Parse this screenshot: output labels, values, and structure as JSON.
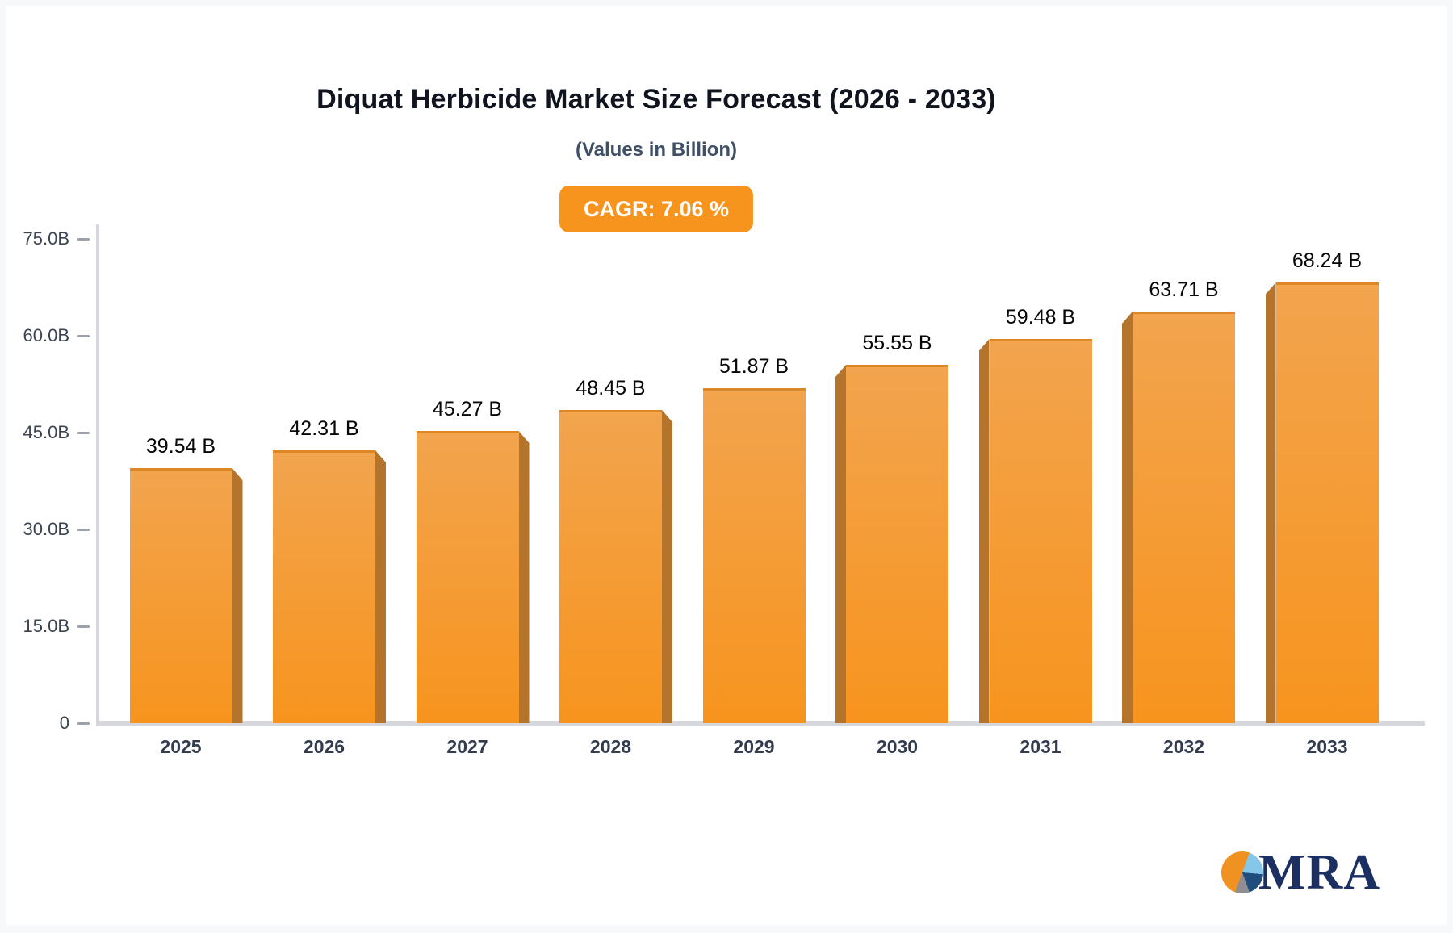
{
  "page": {
    "background": "#f7f8fa",
    "card_background": "#ffffff"
  },
  "header": {
    "title": "Diquat Herbicide Market Size Forecast (2026 - 2033)",
    "subtitle": "(Values in Billion)"
  },
  "badge": {
    "label": "CAGR: 7.06 %",
    "background": "#f7941e",
    "text_color": "#ffffff"
  },
  "chart_data": {
    "type": "bar",
    "title": "Diquat Herbicide Market Size Forecast (2026 - 2033)",
    "subtitle": "(Values in Billion)",
    "cagr": "7.06 %",
    "categories": [
      "2025",
      "2026",
      "2027",
      "2028",
      "2029",
      "2030",
      "2031",
      "2032",
      "2033"
    ],
    "values": [
      39.54,
      42.31,
      45.27,
      48.45,
      51.87,
      55.55,
      59.48,
      63.71,
      68.24
    ],
    "value_labels": [
      "39.54 B",
      "42.31 B",
      "45.27 B",
      "48.45 B",
      "51.87 B",
      "55.55 B",
      "59.48 B",
      "63.71 B",
      "68.24 B"
    ],
    "xlabel": "",
    "ylabel": "",
    "ylim": [
      0,
      75
    ],
    "grid": false,
    "legend": null,
    "yticks": [
      {
        "value": 0,
        "label": "0"
      },
      {
        "value": 15,
        "label": "15.0B"
      },
      {
        "value": 30,
        "label": "30.0B"
      },
      {
        "value": 45,
        "label": "45.0B"
      },
      {
        "value": 60,
        "label": "60.0B"
      },
      {
        "value": 75,
        "label": "75.0B"
      }
    ],
    "style": {
      "bar_face_top": "#f2a44e",
      "bar_face_bottom": "#f7941e",
      "bar_top_edge": "#de8727",
      "bar_side": "#b5742c",
      "axis_line": "#d6d8dd",
      "tick_dash": "#9aa1ab",
      "ytick_text": "#3c4454",
      "xtick_text": "#323c4e",
      "value_text": "#060606"
    }
  },
  "logo": {
    "text": "MRA",
    "text_color": "#1b2f63",
    "pie_orange": "#ef9221",
    "pie_light_blue": "#85c7e8",
    "pie_navy": "#1f4d7d",
    "pie_gray": "#8e8e93"
  }
}
